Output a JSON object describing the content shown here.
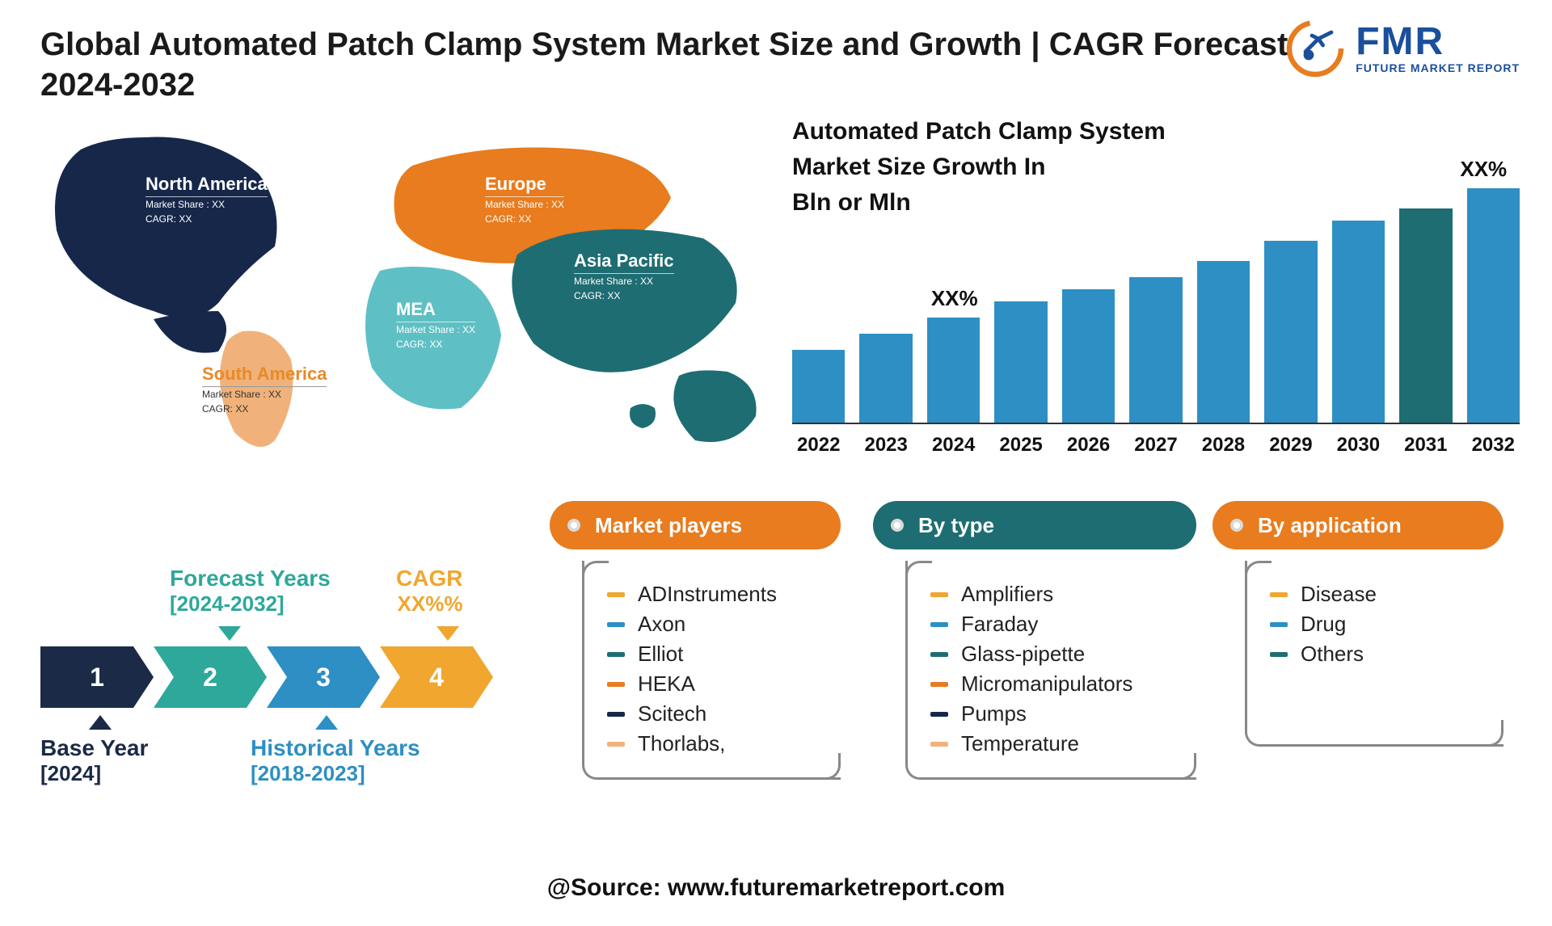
{
  "title": "Global Automated Patch Clamp System Market Size and Growth | CAGR Forecast 2024-2032",
  "logo": {
    "abbr": "FMR",
    "sub": "FUTURE MARKET REPORT",
    "accent": "#e87c1e",
    "blue": "#1b4f9c"
  },
  "map": {
    "regions": [
      {
        "name": "North America",
        "share": "Market Share : XX",
        "cagr": "CAGR: XX",
        "color": "#16274a"
      },
      {
        "name": "South America",
        "share": "Market Share : XX",
        "cagr": "CAGR: XX",
        "color": "#f0b27a"
      },
      {
        "name": "Europe",
        "share": "Market Share : XX",
        "cagr": "CAGR: XX",
        "color": "#e87c1e"
      },
      {
        "name": "MEA",
        "share": "Market Share : XX",
        "cagr": "CAGR: XX",
        "color": "#5ec0c4"
      },
      {
        "name": "Asia Pacific",
        "share": "Market Share : XX",
        "cagr": "CAGR: XX",
        "color": "#1e6d72"
      }
    ]
  },
  "chart": {
    "title_l1": "Automated Patch Clamp System",
    "title_l2": "Market Size Growth In",
    "title_l3": "Bln or Mln",
    "years": [
      "2022",
      "2023",
      "2024",
      "2025",
      "2026",
      "2027",
      "2028",
      "2029",
      "2030",
      "2031",
      "2032"
    ],
    "values": [
      90,
      110,
      130,
      150,
      165,
      180,
      200,
      225,
      250,
      265,
      290
    ],
    "ymax": 300,
    "bar_color": "#2d8fc4",
    "dark_bar_color": "#1e6d72",
    "dark_indices": [
      9
    ],
    "callouts": [
      {
        "idx": 2,
        "text": "XX%"
      },
      {
        "idx": 10,
        "text": "XX%"
      }
    ],
    "axis_color": "#333333"
  },
  "timeline": {
    "steps": [
      {
        "n": "1",
        "color": "#1b2a47"
      },
      {
        "n": "2",
        "color": "#2ea89a"
      },
      {
        "n": "3",
        "color": "#2d8fc4"
      },
      {
        "n": "4",
        "color": "#f0a62f"
      }
    ],
    "labels": {
      "base": {
        "t": "Base Year",
        "s": "[2024]",
        "color": "#1b2a47"
      },
      "forecast": {
        "t": "Forecast Years",
        "s": "[2024-2032]",
        "color": "#2ea89a"
      },
      "historical": {
        "t": "Historical Years",
        "s": "[2018-2023]",
        "color": "#2d8fc4"
      },
      "cagr": {
        "t": "CAGR",
        "s": "XX%%",
        "color": "#f0a62f"
      }
    }
  },
  "pills": {
    "players": {
      "label": "Market players",
      "bg": "#e87c1e",
      "items": [
        "ADInstruments",
        "Axon",
        "Elliot",
        "HEKA",
        "Scitech",
        "Thorlabs,"
      ],
      "ticks": [
        "#f0a62f",
        "#2d8fc4",
        "#1e6d72",
        "#e87c1e",
        "#16274a",
        "#f0b27a"
      ]
    },
    "type": {
      "label": "By type",
      "bg": "#1e6d72",
      "items": [
        "Amplifiers",
        "Faraday",
        "Glass-pipette",
        "Micromanipulators",
        "Pumps",
        "Temperature"
      ],
      "ticks": [
        "#f0a62f",
        "#2d8fc4",
        "#1e6d72",
        "#e87c1e",
        "#16274a",
        "#f0b27a"
      ]
    },
    "application": {
      "label": "By application",
      "bg": "#e87c1e",
      "items": [
        "Disease",
        "Drug",
        "Others"
      ],
      "ticks": [
        "#f0a62f",
        "#2d8fc4",
        "#1e6d72"
      ]
    }
  },
  "source": "@Source: www.futuremarketreport.com"
}
